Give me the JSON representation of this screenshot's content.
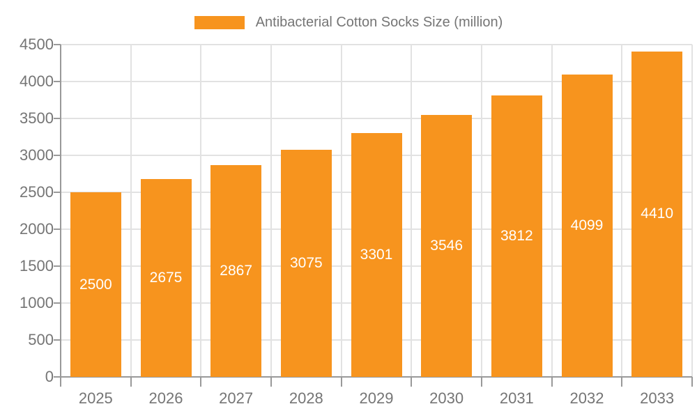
{
  "chart_data": {
    "type": "bar",
    "title": "",
    "legend": "Antibacterial Cotton Socks Size (million)",
    "categories": [
      "2025",
      "2026",
      "2027",
      "2028",
      "2029",
      "2030",
      "2031",
      "2032",
      "2033"
    ],
    "values": [
      2500,
      2675,
      2867,
      3075,
      3301,
      3546,
      3812,
      4099,
      4410
    ],
    "xlabel": "",
    "ylabel": "",
    "ylim": [
      0,
      4500
    ],
    "yticks": [
      0,
      500,
      1000,
      1500,
      2000,
      2500,
      3000,
      3500,
      4000,
      4500
    ],
    "grid": true,
    "legend_position": "top",
    "bar_value_labels_inside": true
  },
  "colors": {
    "bar": "#F7941E",
    "bar_label": "#FFFFFF",
    "axis": "#999999",
    "grid": "#E2E2E2",
    "text": "#757575"
  }
}
